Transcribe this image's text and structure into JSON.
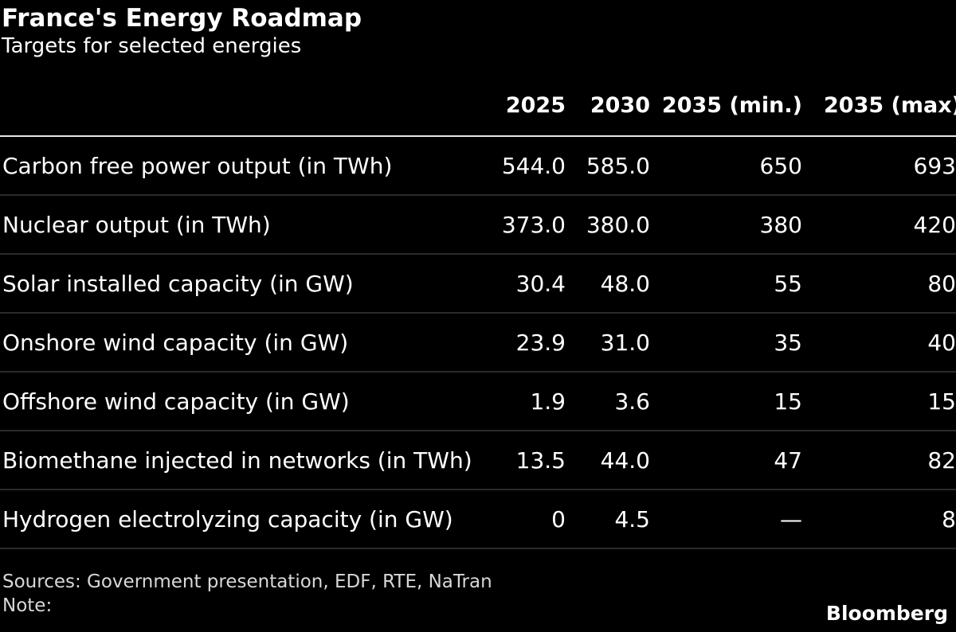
{
  "header": {
    "title": "France's Energy Roadmap",
    "subtitle": "Targets for selected energies"
  },
  "chart_data": {
    "type": "table",
    "title": "France's Energy Roadmap",
    "subtitle": "Targets for selected energies",
    "column_headers": [
      "2025",
      "2030",
      "2035 (min.)",
      "2035 (max)"
    ],
    "rows": [
      {
        "label": "Carbon free power output (in TWh)",
        "values": [
          "544.0",
          "585.0",
          "650",
          "693"
        ]
      },
      {
        "label": "Nuclear output (in TWh)",
        "values": [
          "373.0",
          "380.0",
          "380",
          "420"
        ]
      },
      {
        "label": "Solar installed capacity (in GW)",
        "values": [
          "30.4",
          "48.0",
          "55",
          "80"
        ]
      },
      {
        "label": "Onshore wind capacity (in GW)",
        "values": [
          "23.9",
          "31.0",
          "35",
          "40"
        ]
      },
      {
        "label": "Offshore wind capacity (in GW)",
        "values": [
          "1.9",
          "3.6",
          "15",
          "15"
        ]
      },
      {
        "label": "Biomethane injected in networks (in TWh)",
        "values": [
          "13.5",
          "44.0",
          "47",
          "82"
        ]
      },
      {
        "label": "Hydrogen electrolyzing capacity (in GW)",
        "values": [
          "0",
          "4.5",
          "—",
          "8"
        ]
      }
    ],
    "layout": {
      "grid": "horizontal-rules-only",
      "value_alignment": "right"
    }
  },
  "footer": {
    "sources": "Sources: Government presentation, EDF, RTE, NaTran",
    "note": "Note:",
    "brand": "Bloomberg"
  },
  "colors": {
    "background": "#000000",
    "text": "#ffffff",
    "header_rule": "#e8e8e8",
    "row_rule": "#2b2b2b",
    "footer_text": "#d8d8d8"
  }
}
